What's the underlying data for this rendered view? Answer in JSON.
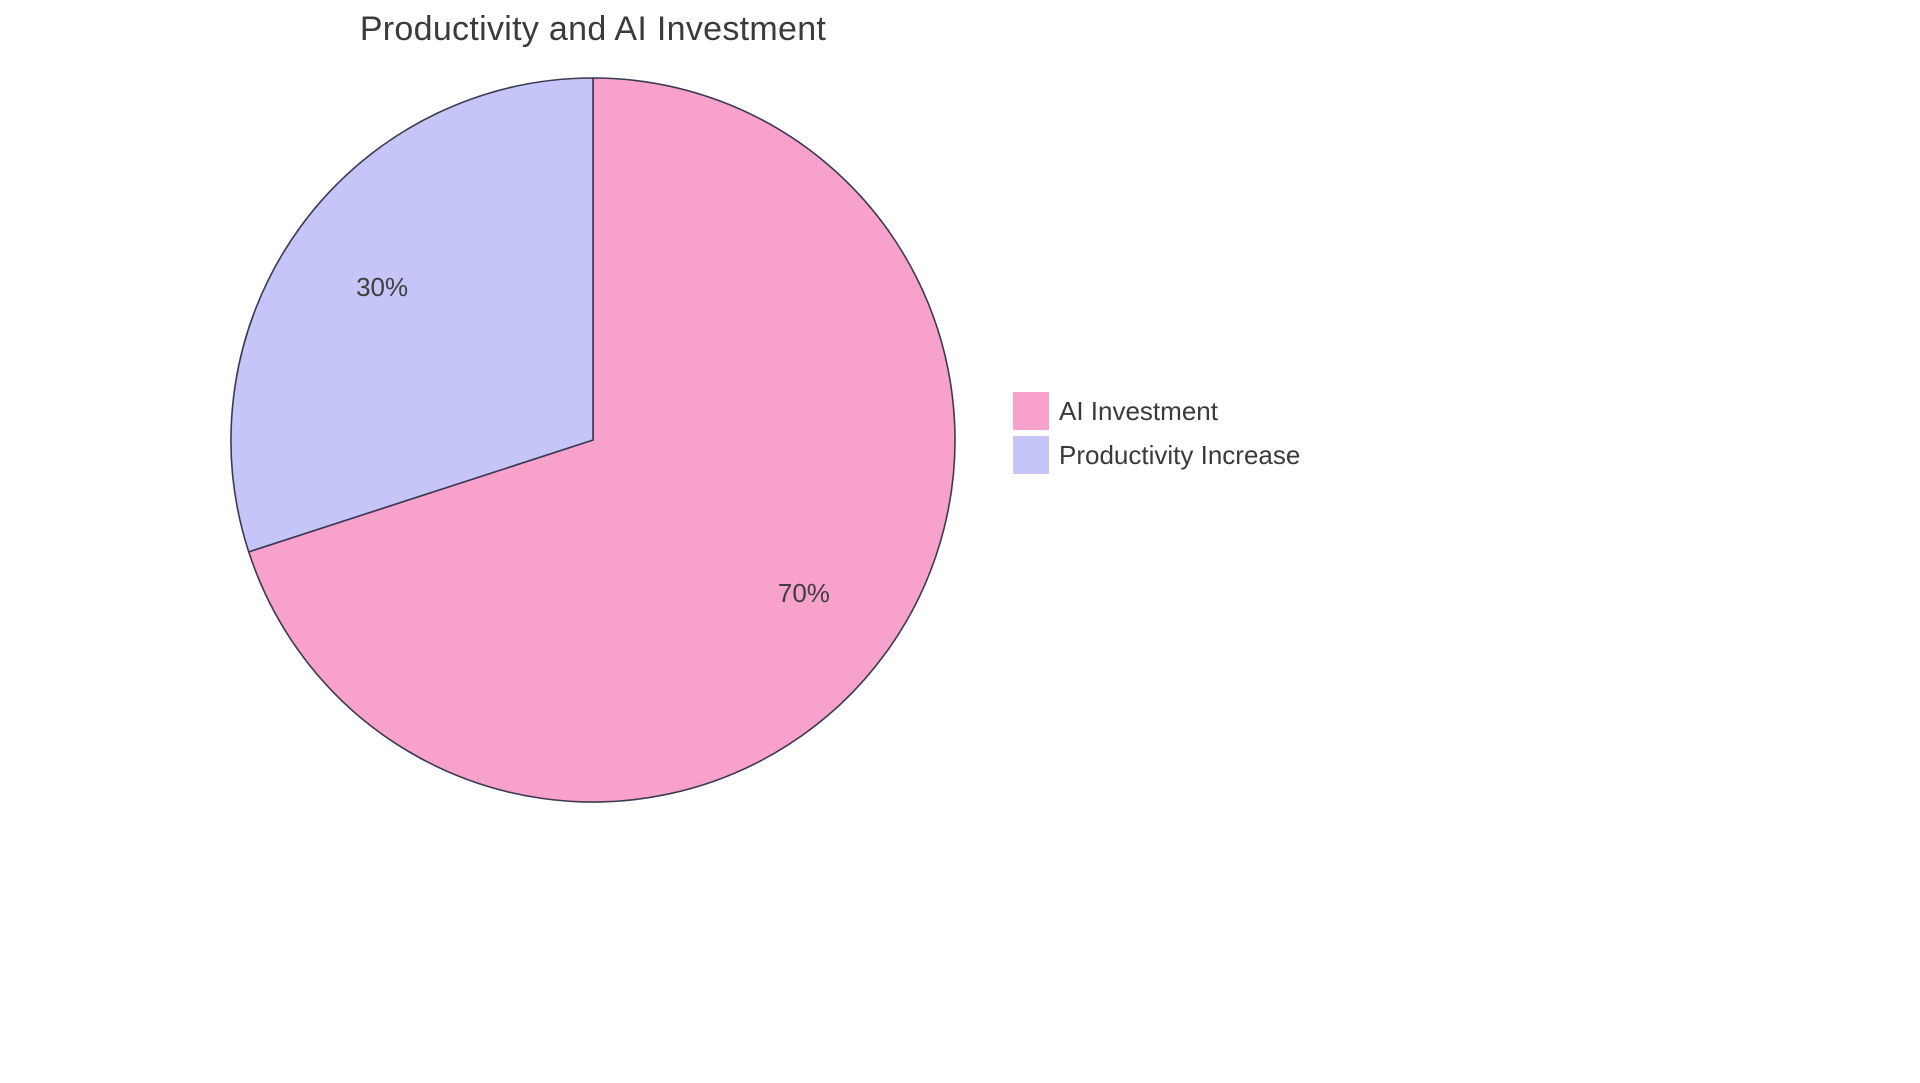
{
  "chart_data": {
    "type": "pie",
    "title": "Productivity and AI Investment",
    "labels": [
      "AI Investment",
      "Productivity Increase"
    ],
    "values": [
      70,
      30
    ],
    "data_labels": [
      "70%",
      "30%"
    ],
    "colors": [
      "#F8A1CB",
      "#C6C5F7"
    ],
    "stroke_color": "#3a3a55",
    "start_angle_deg": -90,
    "direction": "clockwise",
    "legend_position": "right",
    "legend": [
      {
        "label": "AI Investment",
        "color": "#F8A1CB"
      },
      {
        "label": "Productivity Increase",
        "color": "#C6C5F7"
      }
    ]
  }
}
